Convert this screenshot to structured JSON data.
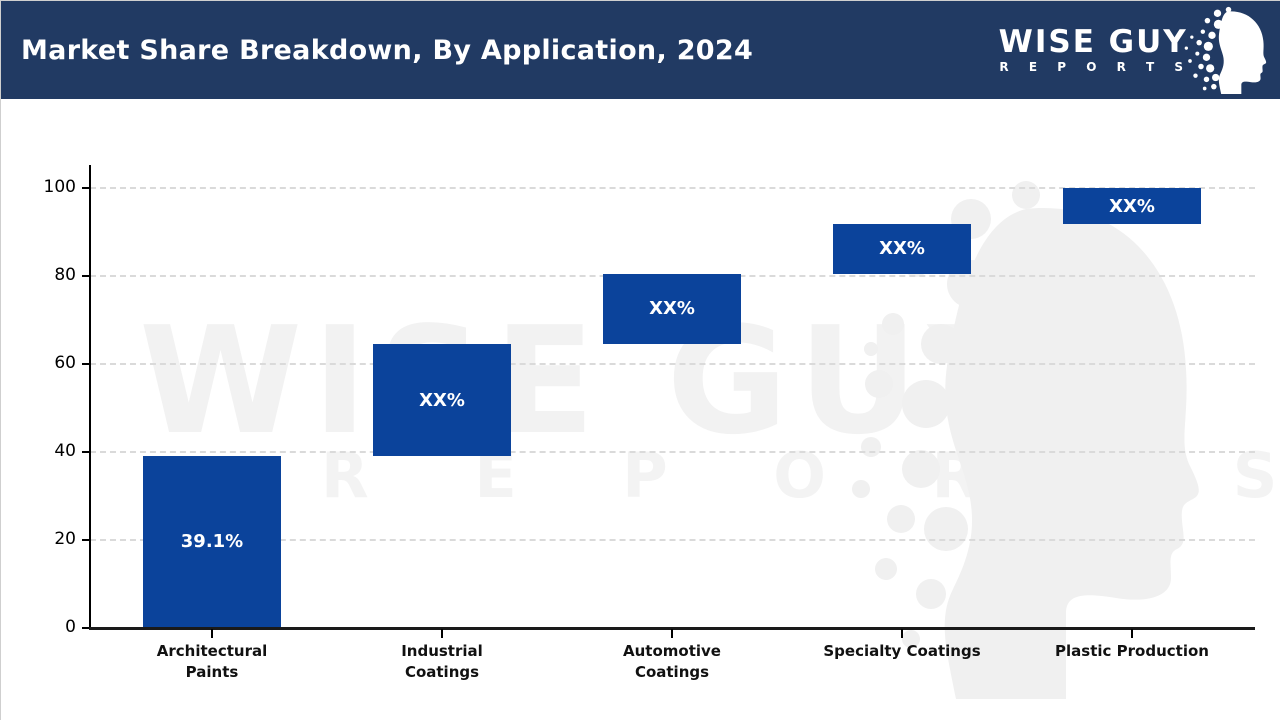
{
  "header": {
    "title": "Market Share Breakdown, By Application, 2024",
    "bg_color": "#213a63",
    "logo": {
      "line1": "WISE GUY",
      "line2": "R E P O R T S"
    }
  },
  "watermark": {
    "line1": "WISE GUY",
    "line2": "R E P O R T S"
  },
  "chart_data": {
    "type": "bar",
    "subtype": "waterfall",
    "title": "Market Share Breakdown, By Application, 2024",
    "categories": [
      "Architectural\nPaints",
      "Industrial\nCoatings",
      "Automotive\nCoatings",
      "Specialty Coatings",
      "Plastic Production"
    ],
    "bars": [
      {
        "category": "Architectural\nPaints",
        "start": 0,
        "end": 39.1,
        "label": "39.1%"
      },
      {
        "category": "Industrial\nCoatings",
        "start": 39.1,
        "end": 64.5,
        "label": "XX%"
      },
      {
        "category": "Automotive\nCoatings",
        "start": 64.5,
        "end": 80.5,
        "label": "XX%"
      },
      {
        "category": "Specialty Coatings",
        "start": 80.5,
        "end": 91.8,
        "label": "XX%"
      },
      {
        "category": "Plastic Production",
        "start": 91.8,
        "end": 100,
        "label": "XX%"
      }
    ],
    "y_ticks": [
      0,
      20,
      40,
      60,
      80,
      100
    ],
    "ylim": [
      0,
      105
    ],
    "xlabel": "",
    "ylabel": "",
    "legend": "none",
    "grid": "horizontal-dashed",
    "bar_color": "#0b439b",
    "bar_label_color": "#ffffff",
    "axis_color": "#000000",
    "gridline_color": "#dadada"
  }
}
